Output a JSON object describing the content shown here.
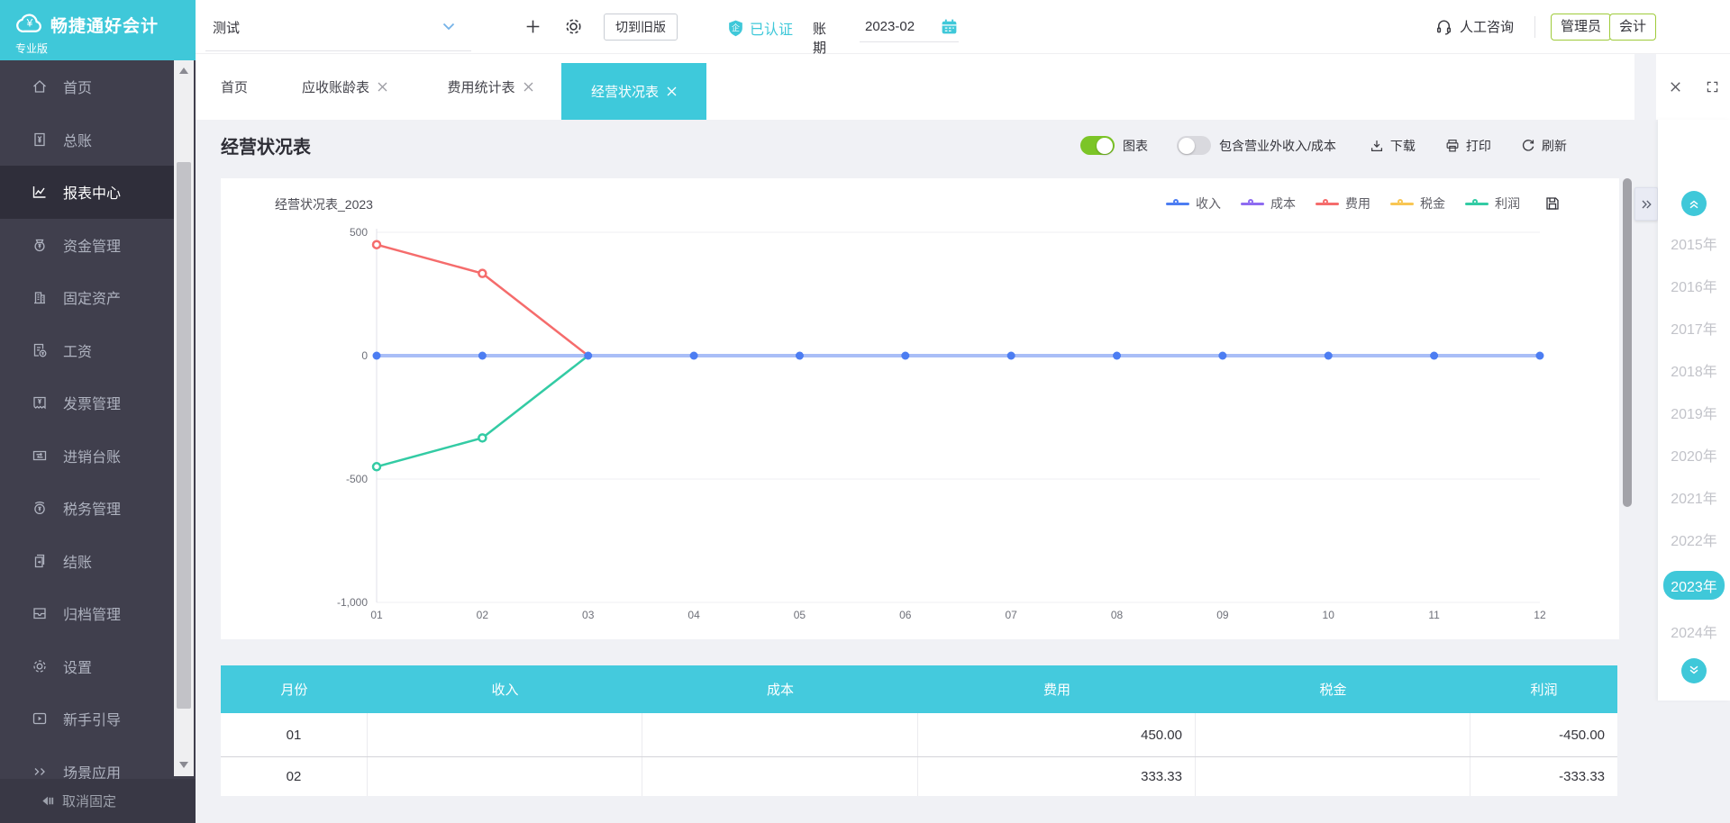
{
  "brand": {
    "name": "畅捷通好会计",
    "edition": "专业版"
  },
  "icons": {
    "logo": "cloud-yuan",
    "logo_char": "¥",
    "shield_char": "企"
  },
  "sidebar": {
    "items": [
      {
        "label": "首页",
        "icon": "home"
      },
      {
        "label": "总账",
        "icon": "general-ledger"
      },
      {
        "label": "报表中心",
        "icon": "report-center"
      },
      {
        "label": "资金管理",
        "icon": "funds"
      },
      {
        "label": "固定资产",
        "icon": "fixed-assets"
      },
      {
        "label": "工资",
        "icon": "salary"
      },
      {
        "label": "发票管理",
        "icon": "invoice"
      },
      {
        "label": "进销台账",
        "icon": "purchase-sale-ledger"
      },
      {
        "label": "税务管理",
        "icon": "tax"
      },
      {
        "label": "结账",
        "icon": "closing"
      },
      {
        "label": "归档管理",
        "icon": "archive"
      },
      {
        "label": "设置",
        "icon": "settings"
      },
      {
        "label": "新手引导",
        "icon": "beginner-guide"
      },
      {
        "label": "场景应用",
        "icon": "scene",
        "partially_visible": true
      }
    ],
    "active_index": 2,
    "collapse_label": "取消固定"
  },
  "topbar": {
    "company": "测试",
    "switch_version": "切到旧版",
    "certified": "已认证",
    "period_label": "账期",
    "period_value": "2023-02",
    "support": "人工咨询",
    "role_badges": [
      "管理员",
      "会计"
    ]
  },
  "tabs": [
    {
      "label": "首页",
      "closable": false,
      "active": false
    },
    {
      "label": "应收账龄表",
      "closable": true,
      "active": false
    },
    {
      "label": "费用统计表",
      "closable": true,
      "active": false
    },
    {
      "label": "经营状况表",
      "closable": true,
      "active": true
    }
  ],
  "page": {
    "title": "经营状况表",
    "chart_toggle_label": "图表",
    "include_toggle_label": "包含营业外收入/成本",
    "download_label": "下载",
    "print_label": "打印",
    "refresh_label": "刷新"
  },
  "chart_data": {
    "type": "line",
    "title": "经营状况表_2023",
    "x": [
      "01",
      "02",
      "03",
      "04",
      "05",
      "06",
      "07",
      "08",
      "09",
      "10",
      "11",
      "12"
    ],
    "ylim": [
      -1000,
      500
    ],
    "yticks": [
      500,
      0,
      -500,
      -1000
    ],
    "ytick_labels": [
      "500",
      "0",
      "-500",
      "-1,000"
    ],
    "grid": true,
    "legend_position": "top-right",
    "series": [
      {
        "name": "收入",
        "color": "#4C7DF2",
        "line_color": "#A9BEF7",
        "points": "all",
        "values": [
          0,
          0,
          0,
          0,
          0,
          0,
          0,
          0,
          0,
          0,
          0,
          0
        ]
      },
      {
        "name": "成本",
        "color": "#8E6BF1",
        "line_color": "#8E6BF1",
        "points": "none",
        "values": [
          0,
          0,
          0,
          0,
          0,
          0,
          0,
          0,
          0,
          0,
          0,
          0
        ]
      },
      {
        "name": "费用",
        "color": "#F56C6C",
        "line_color": "#F56C6C",
        "points": "nonzero",
        "values": [
          450,
          333.33,
          0,
          0,
          0,
          0,
          0,
          0,
          0,
          0,
          0,
          0
        ]
      },
      {
        "name": "税金",
        "color": "#F8C653",
        "line_color": "#F8C653",
        "points": "none",
        "values": [
          0,
          0,
          0,
          0,
          0,
          0,
          0,
          0,
          0,
          0,
          0,
          0
        ]
      },
      {
        "name": "利润",
        "color": "#33CBA4",
        "line_color": "#33CBA4",
        "points": "nonzero",
        "values": [
          -450,
          -333.33,
          0,
          0,
          0,
          0,
          0,
          0,
          0,
          0,
          0,
          0
        ]
      }
    ]
  },
  "table": {
    "columns": [
      "月份",
      "收入",
      "成本",
      "费用",
      "税金",
      "利润"
    ],
    "rows": [
      {
        "cells": [
          "01",
          "",
          "",
          "450.00",
          "",
          "-450.00"
        ]
      },
      {
        "cells": [
          "02",
          "",
          "",
          "333.33",
          "",
          "-333.33"
        ]
      }
    ]
  },
  "year_panel": {
    "years": [
      "2015年",
      "2016年",
      "2017年",
      "2018年",
      "2019年",
      "2020年",
      "2021年",
      "2022年",
      "2023年",
      "2024年"
    ],
    "selected": "2023年",
    "selected_index": 8
  },
  "colors": {
    "brand_teal": "#3FC8D9",
    "tab_active_teal": "#3EC9DB",
    "table_header_teal": "#44CADD",
    "toggle_on_green": "#7CC527",
    "badge_green_border": "#9FCB3B",
    "sidebar_bg": "#403F4D",
    "sidebar_active_bg": "#2F2E3A",
    "page_bg": "#F0F1F5"
  }
}
